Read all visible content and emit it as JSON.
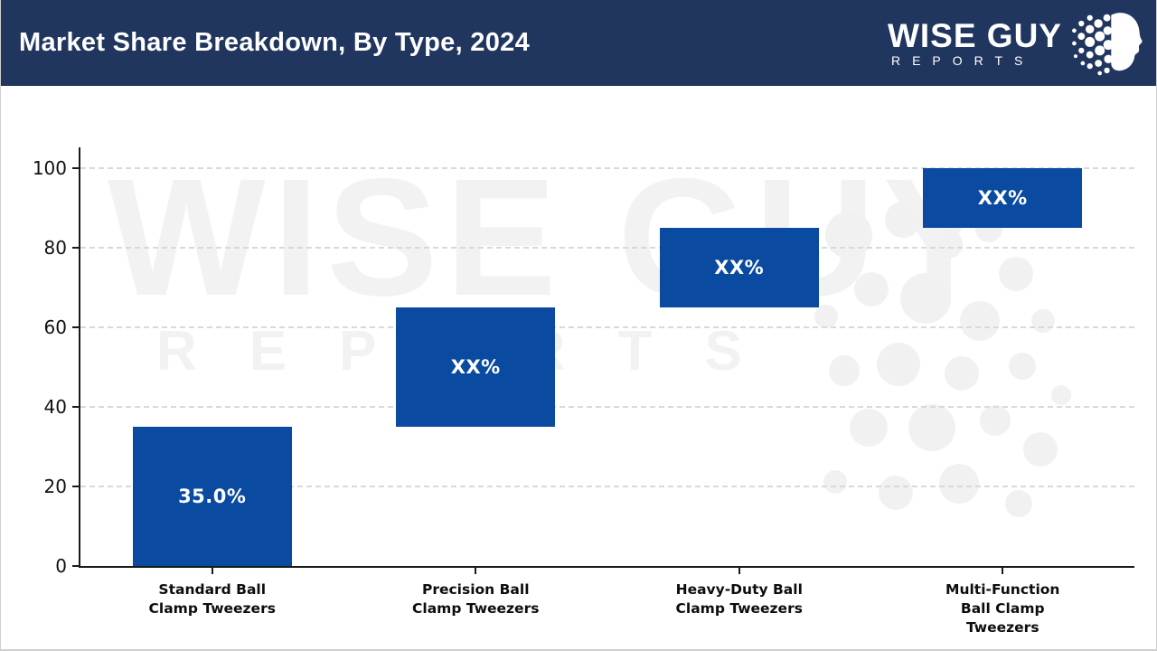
{
  "header": {
    "title": "Market Share Breakdown, By Type, 2024",
    "bg_color": "#20365f",
    "logo": {
      "line1": "WISE GUY",
      "line2": "REPORTS"
    }
  },
  "watermark": {
    "line1": "WISE GUY",
    "line2": "REPORTS"
  },
  "chart_data": {
    "type": "bar",
    "subtype": "waterfall",
    "title": "Market Share Breakdown, By Type, 2024",
    "categories": [
      "Standard Ball Clamp Tweezers",
      "Precision Ball Clamp Tweezers",
      "Heavy-Duty Ball Clamp Tweezers",
      "Multi-Function Ball Clamp Tweezers"
    ],
    "category_lines": [
      [
        "Standard Ball",
        "Clamp Tweezers"
      ],
      [
        "Precision Ball",
        "Clamp Tweezers"
      ],
      [
        "Heavy-Duty Ball",
        "Clamp Tweezers"
      ],
      [
        "Multi-Function",
        "Ball Clamp",
        "Tweezers"
      ]
    ],
    "segments": [
      {
        "start": 0,
        "end": 35,
        "value": 35,
        "label": "35.0%"
      },
      {
        "start": 35,
        "end": 65,
        "value": 30,
        "label": "XX%"
      },
      {
        "start": 65,
        "end": 85,
        "value": 20,
        "label": "XX%"
      },
      {
        "start": 85,
        "end": 100,
        "value": 15,
        "label": "XX%"
      }
    ],
    "values": [
      35,
      30,
      20,
      15
    ],
    "yticks": [
      0,
      20,
      40,
      60,
      80,
      100
    ],
    "ylim": [
      0,
      100
    ],
    "xlabel": "",
    "ylabel": "",
    "grid": true,
    "grid_style": "dashed",
    "legend": "none",
    "bar_color": "#0a4aa0",
    "bar_label_color": "#ffffff",
    "grid_color": "#d9d9d9",
    "axis_color": "#1a1a1a"
  }
}
